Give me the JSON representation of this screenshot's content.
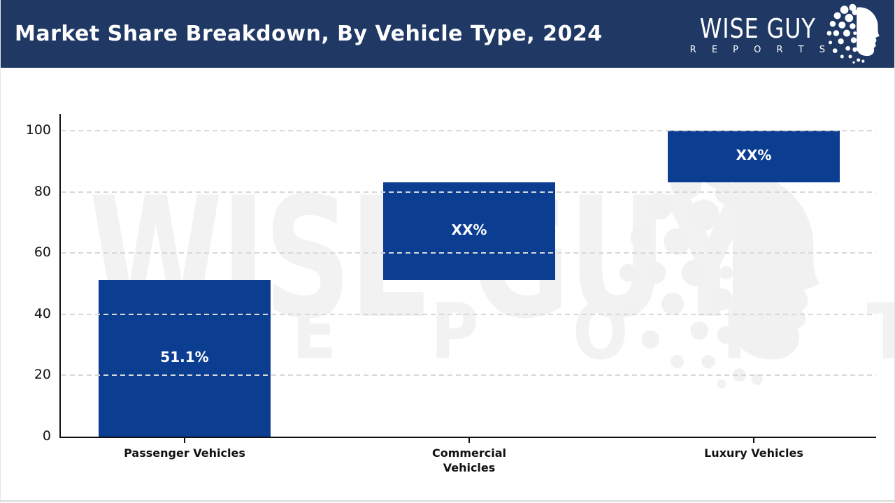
{
  "header": {
    "title": "Market Share Breakdown, By Vehicle Type, 2024",
    "logo": {
      "name": "WISE GUY",
      "sub": "R E P O R T S"
    }
  },
  "watermark": {
    "line1": "WISE GUY",
    "line2": "R E P O R T S"
  },
  "colors": {
    "header_bg": "#1f3864",
    "bar": "#0b3d91",
    "bar_label": "#ffffff",
    "gridline": "#d8d8d8",
    "axis": "#111111",
    "watermark": "#f2f2f2"
  },
  "chart_data": {
    "type": "bar",
    "subtype": "floating-waterfall",
    "title": "Market Share Breakdown, By Vehicle Type, 2024",
    "categories": [
      "Passenger Vehicles",
      "Commercial\nVehicles",
      "Luxury Vehicles"
    ],
    "bars": [
      {
        "category": "Passenger Vehicles",
        "start": 0,
        "end": 51.1,
        "label": "51.1%"
      },
      {
        "category": "Commercial Vehicles",
        "start": 51.1,
        "end": 83.1,
        "label": "XX%"
      },
      {
        "category": "Luxury Vehicles",
        "start": 83.1,
        "end": 100,
        "label": "XX%"
      }
    ],
    "xlabel": "",
    "ylabel": "",
    "ylim": [
      0,
      105.5
    ],
    "yticks": [
      0,
      20,
      40,
      60,
      80,
      100
    ],
    "grid": "horizontal-dashed",
    "legend": "none"
  }
}
